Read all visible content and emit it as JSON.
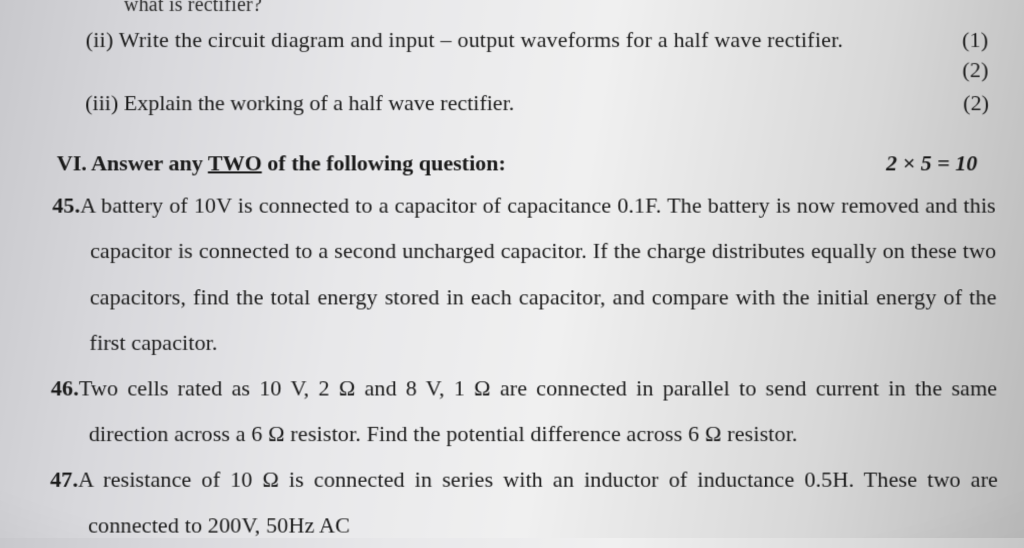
{
  "partial_top": "what is rectifier?",
  "items": {
    "ii": {
      "label": "(ii)",
      "text": "Write the circuit diagram and input – output waveforms for a half wave rectifier.",
      "mark_above": "(1)",
      "mark": "(2)"
    },
    "iii": {
      "label": "(iii)",
      "text": "Explain the working of a half wave rectifier.",
      "mark": "(2)"
    }
  },
  "section": {
    "prefix": "VI. Answer any ",
    "two": "TWO",
    "suffix": " of the following question:",
    "formula": "2 × 5 = 10"
  },
  "q45": {
    "num": "45.",
    "text": "A battery of 10V is connected to a capacitor of capacitance 0.1F. The battery is now removed and this capacitor is connected to a second uncharged capacitor. If the charge distributes equally on these two capacitors, find the total energy stored in each capacitor, and compare with the initial energy of the first capacitor."
  },
  "q46": {
    "num": "46.",
    "text": "Two cells rated as 10 V, 2 Ω and 8 V, 1 Ω are connected in parallel to send current in the same direction across a 6 Ω resistor. Find the potential difference across 6 Ω resistor."
  },
  "q47": {
    "num": "47.",
    "text": "A resistance of 10 Ω is connected in series with an inductor of inductance 0.5H. These two are connected to 200V, 50Hz AC"
  }
}
